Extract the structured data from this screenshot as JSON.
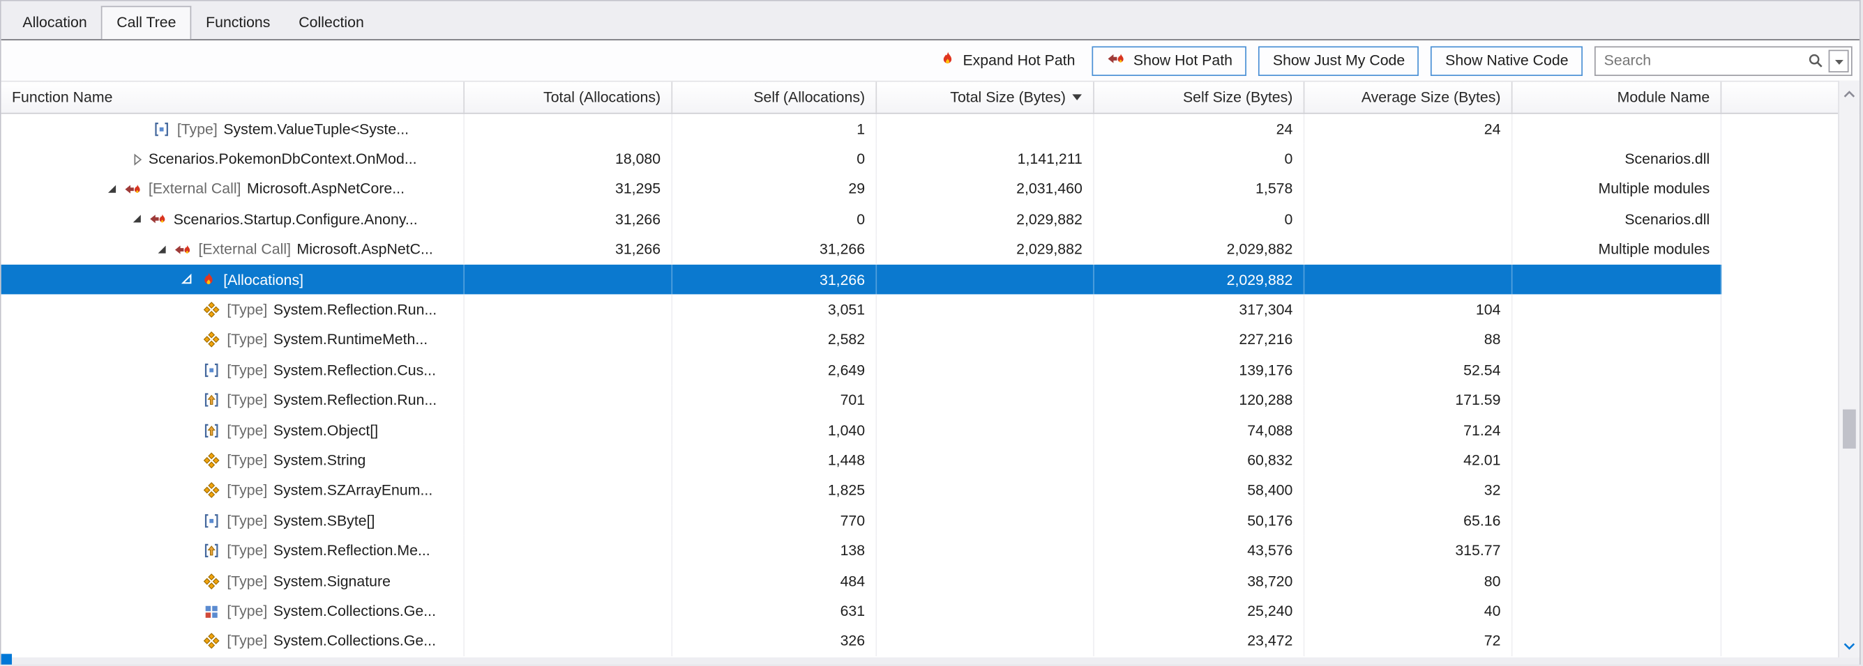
{
  "tabs": [
    {
      "label": "Allocation",
      "selected": false
    },
    {
      "label": "Call Tree",
      "selected": true
    },
    {
      "label": "Functions",
      "selected": false
    },
    {
      "label": "Collection",
      "selected": false
    }
  ],
  "toolbar": {
    "expand_hot_path": "Expand Hot Path",
    "show_hot_path": "Show Hot Path",
    "show_just_my_code": "Show Just My Code",
    "show_native_code": "Show Native Code",
    "search_placeholder": "Search"
  },
  "colors": {
    "selection_blue": "#0b79cf",
    "button_border_blue": "#4a90d5",
    "flame_red": "#e0351f",
    "flame_yellow": "#ffc20e"
  },
  "columns": [
    {
      "key": "name",
      "label": "Function Name",
      "align": "left"
    },
    {
      "key": "total",
      "label": "Total (Allocations)",
      "align": "right"
    },
    {
      "key": "self",
      "label": "Self (Allocations)",
      "align": "right"
    },
    {
      "key": "total_size",
      "label": "Total Size (Bytes)",
      "align": "right",
      "sort": "desc"
    },
    {
      "key": "self_size",
      "label": "Self Size (Bytes)",
      "align": "right"
    },
    {
      "key": "avg",
      "label": "Average Size (Bytes)",
      "align": "right"
    },
    {
      "key": "module",
      "label": "Module Name",
      "align": "right"
    }
  ],
  "rows": [
    {
      "level": 5,
      "expander": null,
      "icon": "struct",
      "prefix": "[Type]",
      "name": "System.ValueTuple<Syste...",
      "total": "",
      "self": "1",
      "total_size": "",
      "self_size": "24",
      "avg": "24",
      "module": "",
      "selected": false
    },
    {
      "level": 4,
      "expander": "collapsed",
      "icon": null,
      "prefix": null,
      "name": "Scenarios.PokemonDbContext.OnMod...",
      "total": "18,080",
      "self": "0",
      "total_size": "1,141,211",
      "self_size": "0",
      "avg": "",
      "module": "Scenarios.dll",
      "selected": false
    },
    {
      "level": 3,
      "expander": "expanded",
      "icon": "hotpath",
      "prefix": "[External Call]",
      "name": "Microsoft.AspNetCore...",
      "total": "31,295",
      "self": "29",
      "total_size": "2,031,460",
      "self_size": "1,578",
      "avg": "",
      "module": "Multiple modules",
      "selected": false
    },
    {
      "level": 4,
      "expander": "expanded",
      "icon": "hotpath",
      "prefix": null,
      "name": "Scenarios.Startup.Configure.Anony...",
      "total": "31,266",
      "self": "0",
      "total_size": "2,029,882",
      "self_size": "0",
      "avg": "",
      "module": "Scenarios.dll",
      "selected": false
    },
    {
      "level": 5,
      "expander": "expanded",
      "icon": "hotpath",
      "prefix": "[External Call]",
      "name": "Microsoft.AspNetC...",
      "total": "31,266",
      "self": "31,266",
      "total_size": "2,029,882",
      "self_size": "2,029,882",
      "avg": "",
      "module": "Multiple modules",
      "selected": false
    },
    {
      "level": 6,
      "expander": "expanded",
      "icon": "flame",
      "prefix": null,
      "name": "[Allocations]",
      "total": "",
      "self": "31,266",
      "total_size": "",
      "self_size": "2,029,882",
      "avg": "",
      "module": "",
      "selected": true
    },
    {
      "level": 7,
      "expander": null,
      "icon": "class",
      "prefix": "[Type]",
      "name": "System.Reflection.Run...",
      "total": "",
      "self": "3,051",
      "total_size": "",
      "self_size": "317,304",
      "avg": "104",
      "module": "",
      "selected": false
    },
    {
      "level": 7,
      "expander": null,
      "icon": "class",
      "prefix": "[Type]",
      "name": "System.RuntimeMeth...",
      "total": "",
      "self": "2,582",
      "total_size": "",
      "self_size": "227,216",
      "avg": "88",
      "module": "",
      "selected": false
    },
    {
      "level": 7,
      "expander": null,
      "icon": "struct",
      "prefix": "[Type]",
      "name": "System.Reflection.Cus...",
      "total": "",
      "self": "2,649",
      "total_size": "",
      "self_size": "139,176",
      "avg": "52.54",
      "module": "",
      "selected": false
    },
    {
      "level": 7,
      "expander": null,
      "icon": "array",
      "prefix": "[Type]",
      "name": "System.Reflection.Run...",
      "total": "",
      "self": "701",
      "total_size": "",
      "self_size": "120,288",
      "avg": "171.59",
      "module": "",
      "selected": false
    },
    {
      "level": 7,
      "expander": null,
      "icon": "array",
      "prefix": "[Type]",
      "name": "System.Object[]",
      "total": "",
      "self": "1,040",
      "total_size": "",
      "self_size": "74,088",
      "avg": "71.24",
      "module": "",
      "selected": false
    },
    {
      "level": 7,
      "expander": null,
      "icon": "class",
      "prefix": "[Type]",
      "name": "System.String",
      "total": "",
      "self": "1,448",
      "total_size": "",
      "self_size": "60,832",
      "avg": "42.01",
      "module": "",
      "selected": false
    },
    {
      "level": 7,
      "expander": null,
      "icon": "class",
      "prefix": "[Type]",
      "name": "System.SZArrayEnum...",
      "total": "",
      "self": "1,825",
      "total_size": "",
      "self_size": "58,400",
      "avg": "32",
      "module": "",
      "selected": false
    },
    {
      "level": 7,
      "expander": null,
      "icon": "struct",
      "prefix": "[Type]",
      "name": "System.SByte[]",
      "total": "",
      "self": "770",
      "total_size": "",
      "self_size": "50,176",
      "avg": "65.16",
      "module": "",
      "selected": false
    },
    {
      "level": 7,
      "expander": null,
      "icon": "array",
      "prefix": "[Type]",
      "name": "System.Reflection.Me...",
      "total": "",
      "self": "138",
      "total_size": "",
      "self_size": "43,576",
      "avg": "315.77",
      "module": "",
      "selected": false
    },
    {
      "level": 7,
      "expander": null,
      "icon": "class",
      "prefix": "[Type]",
      "name": "System.Signature",
      "total": "",
      "self": "484",
      "total_size": "",
      "self_size": "38,720",
      "avg": "80",
      "module": "",
      "selected": false
    },
    {
      "level": 7,
      "expander": null,
      "icon": "dictionary",
      "prefix": "[Type]",
      "name": "System.Collections.Ge...",
      "total": "",
      "self": "631",
      "total_size": "",
      "self_size": "25,240",
      "avg": "40",
      "module": "",
      "selected": false
    },
    {
      "level": 7,
      "expander": null,
      "icon": "class",
      "prefix": "[Type]",
      "name": "System.Collections.Ge...",
      "total": "",
      "self": "326",
      "total_size": "",
      "self_size": "23,472",
      "avg": "72",
      "module": "",
      "selected": false
    }
  ]
}
